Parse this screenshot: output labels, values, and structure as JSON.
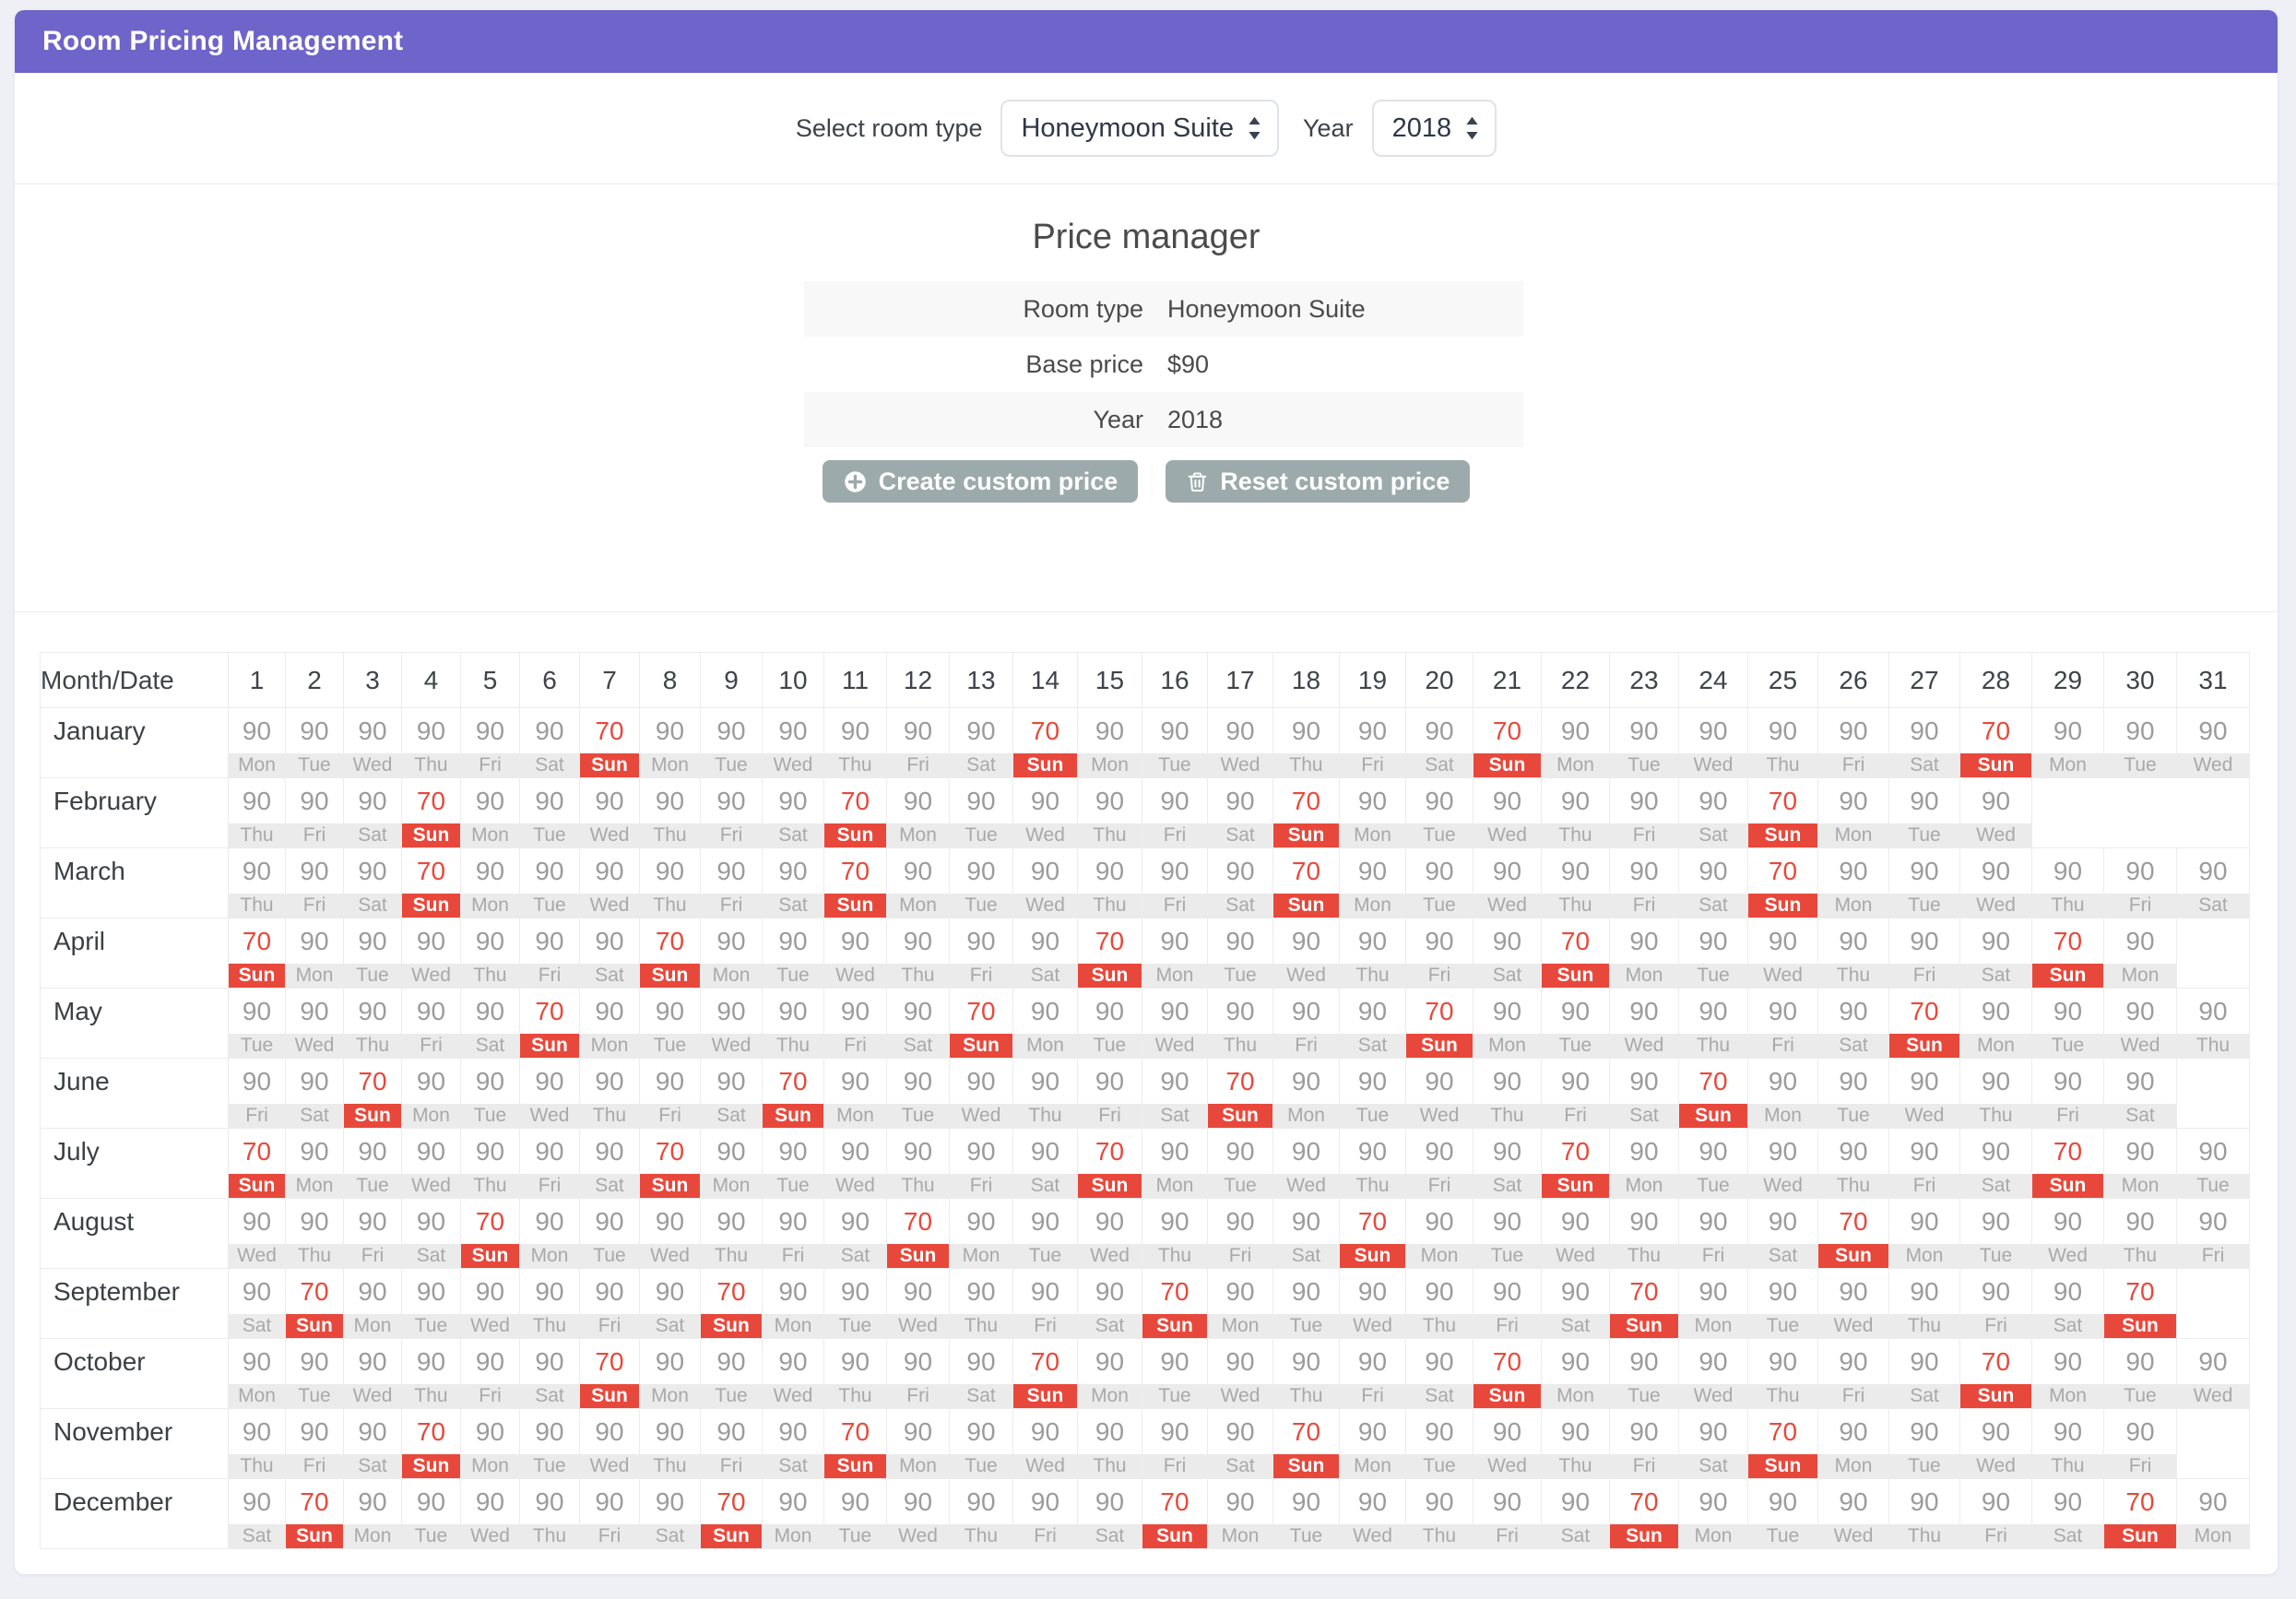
{
  "header": {
    "title": "Room Pricing Management"
  },
  "controls": {
    "room_type_label": "Select room type",
    "room_type_value": "Honeymoon Suite",
    "year_label": "Year",
    "year_value": "2018"
  },
  "price_manager": {
    "title": "Price manager",
    "rows": [
      {
        "label": "Room type",
        "value": "Honeymoon Suite"
      },
      {
        "label": "Base price",
        "value": "$90"
      },
      {
        "label": "Year",
        "value": "2018"
      }
    ],
    "create_button_label": "Create custom price",
    "reset_button_label": "Reset custom price"
  },
  "pricing_table": {
    "corner_label": "Month/Date",
    "day_numbers": [
      1,
      2,
      3,
      4,
      5,
      6,
      7,
      8,
      9,
      10,
      11,
      12,
      13,
      14,
      15,
      16,
      17,
      18,
      19,
      20,
      21,
      22,
      23,
      24,
      25,
      26,
      27,
      28,
      29,
      30,
      31
    ],
    "base_price": 90,
    "sunday_price": 70,
    "months": [
      {
        "name": "January",
        "weekdays": [
          "Mon",
          "Tue",
          "Wed",
          "Thu",
          "Fri",
          "Sat",
          "Sun",
          "Mon",
          "Tue",
          "Wed",
          "Thu",
          "Fri",
          "Sat",
          "Sun",
          "Mon",
          "Tue",
          "Wed",
          "Thu",
          "Fri",
          "Sat",
          "Sun",
          "Mon",
          "Tue",
          "Wed",
          "Thu",
          "Fri",
          "Sat",
          "Sun",
          "Mon",
          "Tue",
          "Wed"
        ],
        "prices": [
          90,
          90,
          90,
          90,
          90,
          90,
          70,
          90,
          90,
          90,
          90,
          90,
          90,
          70,
          90,
          90,
          90,
          90,
          90,
          90,
          70,
          90,
          90,
          90,
          90,
          90,
          90,
          70,
          90,
          90,
          90
        ]
      },
      {
        "name": "February",
        "weekdays": [
          "Thu",
          "Fri",
          "Sat",
          "Sun",
          "Mon",
          "Tue",
          "Wed",
          "Thu",
          "Fri",
          "Sat",
          "Sun",
          "Mon",
          "Tue",
          "Wed",
          "Thu",
          "Fri",
          "Sat",
          "Sun",
          "Mon",
          "Tue",
          "Wed",
          "Thu",
          "Fri",
          "Sat",
          "Sun",
          "Mon",
          "Tue",
          "Wed"
        ],
        "prices": [
          90,
          90,
          90,
          70,
          90,
          90,
          90,
          90,
          90,
          90,
          70,
          90,
          90,
          90,
          90,
          90,
          90,
          70,
          90,
          90,
          90,
          90,
          90,
          90,
          70,
          90,
          90,
          90
        ]
      },
      {
        "name": "March",
        "weekdays": [
          "Thu",
          "Fri",
          "Sat",
          "Sun",
          "Mon",
          "Tue",
          "Wed",
          "Thu",
          "Fri",
          "Sat",
          "Sun",
          "Mon",
          "Tue",
          "Wed",
          "Thu",
          "Fri",
          "Sat",
          "Sun",
          "Mon",
          "Tue",
          "Wed",
          "Thu",
          "Fri",
          "Sat",
          "Sun",
          "Mon",
          "Tue",
          "Wed",
          "Thu",
          "Fri",
          "Sat"
        ],
        "prices": [
          90,
          90,
          90,
          70,
          90,
          90,
          90,
          90,
          90,
          90,
          70,
          90,
          90,
          90,
          90,
          90,
          90,
          70,
          90,
          90,
          90,
          90,
          90,
          90,
          70,
          90,
          90,
          90,
          90,
          90,
          90
        ]
      },
      {
        "name": "April",
        "weekdays": [
          "Sun",
          "Mon",
          "Tue",
          "Wed",
          "Thu",
          "Fri",
          "Sat",
          "Sun",
          "Mon",
          "Tue",
          "Wed",
          "Thu",
          "Fri",
          "Sat",
          "Sun",
          "Mon",
          "Tue",
          "Wed",
          "Thu",
          "Fri",
          "Sat",
          "Sun",
          "Mon",
          "Tue",
          "Wed",
          "Thu",
          "Fri",
          "Sat",
          "Sun",
          "Mon"
        ],
        "prices": [
          70,
          90,
          90,
          90,
          90,
          90,
          90,
          70,
          90,
          90,
          90,
          90,
          90,
          90,
          70,
          90,
          90,
          90,
          90,
          90,
          90,
          70,
          90,
          90,
          90,
          90,
          90,
          90,
          70,
          90
        ]
      },
      {
        "name": "May",
        "weekdays": [
          "Tue",
          "Wed",
          "Thu",
          "Fri",
          "Sat",
          "Sun",
          "Mon",
          "Tue",
          "Wed",
          "Thu",
          "Fri",
          "Sat",
          "Sun",
          "Mon",
          "Tue",
          "Wed",
          "Thu",
          "Fri",
          "Sat",
          "Sun",
          "Mon",
          "Tue",
          "Wed",
          "Thu",
          "Fri",
          "Sat",
          "Sun",
          "Mon",
          "Tue",
          "Wed",
          "Thu"
        ],
        "prices": [
          90,
          90,
          90,
          90,
          90,
          70,
          90,
          90,
          90,
          90,
          90,
          90,
          70,
          90,
          90,
          90,
          90,
          90,
          90,
          70,
          90,
          90,
          90,
          90,
          90,
          90,
          70,
          90,
          90,
          90,
          90
        ]
      },
      {
        "name": "June",
        "weekdays": [
          "Fri",
          "Sat",
          "Sun",
          "Mon",
          "Tue",
          "Wed",
          "Thu",
          "Fri",
          "Sat",
          "Sun",
          "Mon",
          "Tue",
          "Wed",
          "Thu",
          "Fri",
          "Sat",
          "Sun",
          "Mon",
          "Tue",
          "Wed",
          "Thu",
          "Fri",
          "Sat",
          "Sun",
          "Mon",
          "Tue",
          "Wed",
          "Thu",
          "Fri",
          "Sat"
        ],
        "prices": [
          90,
          90,
          70,
          90,
          90,
          90,
          90,
          90,
          90,
          70,
          90,
          90,
          90,
          90,
          90,
          90,
          70,
          90,
          90,
          90,
          90,
          90,
          90,
          70,
          90,
          90,
          90,
          90,
          90,
          90
        ]
      },
      {
        "name": "July",
        "weekdays": [
          "Sun",
          "Mon",
          "Tue",
          "Wed",
          "Thu",
          "Fri",
          "Sat",
          "Sun",
          "Mon",
          "Tue",
          "Wed",
          "Thu",
          "Fri",
          "Sat",
          "Sun",
          "Mon",
          "Tue",
          "Wed",
          "Thu",
          "Fri",
          "Sat",
          "Sun",
          "Mon",
          "Tue",
          "Wed",
          "Thu",
          "Fri",
          "Sat",
          "Sun",
          "Mon",
          "Tue"
        ],
        "prices": [
          70,
          90,
          90,
          90,
          90,
          90,
          90,
          70,
          90,
          90,
          90,
          90,
          90,
          90,
          70,
          90,
          90,
          90,
          90,
          90,
          90,
          70,
          90,
          90,
          90,
          90,
          90,
          90,
          70,
          90,
          90
        ]
      },
      {
        "name": "August",
        "weekdays": [
          "Wed",
          "Thu",
          "Fri",
          "Sat",
          "Sun",
          "Mon",
          "Tue",
          "Wed",
          "Thu",
          "Fri",
          "Sat",
          "Sun",
          "Mon",
          "Tue",
          "Wed",
          "Thu",
          "Fri",
          "Sat",
          "Sun",
          "Mon",
          "Tue",
          "Wed",
          "Thu",
          "Fri",
          "Sat",
          "Sun",
          "Mon",
          "Tue",
          "Wed",
          "Thu",
          "Fri"
        ],
        "prices": [
          90,
          90,
          90,
          90,
          70,
          90,
          90,
          90,
          90,
          90,
          90,
          70,
          90,
          90,
          90,
          90,
          90,
          90,
          70,
          90,
          90,
          90,
          90,
          90,
          90,
          70,
          90,
          90,
          90,
          90,
          90
        ]
      },
      {
        "name": "September",
        "weekdays": [
          "Sat",
          "Sun",
          "Mon",
          "Tue",
          "Wed",
          "Thu",
          "Fri",
          "Sat",
          "Sun",
          "Mon",
          "Tue",
          "Wed",
          "Thu",
          "Fri",
          "Sat",
          "Sun",
          "Mon",
          "Tue",
          "Wed",
          "Thu",
          "Fri",
          "Sat",
          "Sun",
          "Mon",
          "Tue",
          "Wed",
          "Thu",
          "Fri",
          "Sat",
          "Sun"
        ],
        "prices": [
          90,
          70,
          90,
          90,
          90,
          90,
          90,
          90,
          70,
          90,
          90,
          90,
          90,
          90,
          90,
          70,
          90,
          90,
          90,
          90,
          90,
          90,
          70,
          90,
          90,
          90,
          90,
          90,
          90,
          70
        ]
      },
      {
        "name": "October",
        "weekdays": [
          "Mon",
          "Tue",
          "Wed",
          "Thu",
          "Fri",
          "Sat",
          "Sun",
          "Mon",
          "Tue",
          "Wed",
          "Thu",
          "Fri",
          "Sat",
          "Sun",
          "Mon",
          "Tue",
          "Wed",
          "Thu",
          "Fri",
          "Sat",
          "Sun",
          "Mon",
          "Tue",
          "Wed",
          "Thu",
          "Fri",
          "Sat",
          "Sun",
          "Mon",
          "Tue",
          "Wed"
        ],
        "prices": [
          90,
          90,
          90,
          90,
          90,
          90,
          70,
          90,
          90,
          90,
          90,
          90,
          90,
          70,
          90,
          90,
          90,
          90,
          90,
          90,
          70,
          90,
          90,
          90,
          90,
          90,
          90,
          70,
          90,
          90,
          90
        ]
      },
      {
        "name": "November",
        "weekdays": [
          "Thu",
          "Fri",
          "Sat",
          "Sun",
          "Mon",
          "Tue",
          "Wed",
          "Thu",
          "Fri",
          "Sat",
          "Sun",
          "Mon",
          "Tue",
          "Wed",
          "Thu",
          "Fri",
          "Sat",
          "Sun",
          "Mon",
          "Tue",
          "Wed",
          "Thu",
          "Fri",
          "Sat",
          "Sun",
          "Mon",
          "Tue",
          "Wed",
          "Thu",
          "Fri"
        ],
        "prices": [
          90,
          90,
          90,
          70,
          90,
          90,
          90,
          90,
          90,
          90,
          70,
          90,
          90,
          90,
          90,
          90,
          90,
          70,
          90,
          90,
          90,
          90,
          90,
          90,
          70,
          90,
          90,
          90,
          90,
          90
        ]
      },
      {
        "name": "December",
        "weekdays": [
          "Sat",
          "Sun",
          "Mon",
          "Tue",
          "Wed",
          "Thu",
          "Fri",
          "Sat",
          "Sun",
          "Mon",
          "Tue",
          "Wed",
          "Thu",
          "Fri",
          "Sat",
          "Sun",
          "Mon",
          "Tue",
          "Wed",
          "Thu",
          "Fri",
          "Sat",
          "Sun",
          "Mon",
          "Tue",
          "Wed",
          "Thu",
          "Fri",
          "Sat",
          "Sun",
          "Mon"
        ],
        "prices": [
          90,
          70,
          90,
          90,
          90,
          90,
          90,
          90,
          70,
          90,
          90,
          90,
          90,
          90,
          90,
          70,
          90,
          90,
          90,
          90,
          90,
          90,
          70,
          90,
          90,
          90,
          90,
          90,
          90,
          70,
          90
        ]
      }
    ]
  },
  "colors": {
    "page_bg": "#eef0f6",
    "header_bg": "#6e64c9",
    "accent_red": "#e8483b",
    "button_bg": "#9caaab",
    "band_bg": "#ebebeb",
    "stripe_bg": "#f8f8f8",
    "table_border": "#ececec",
    "price_gray": "#9b9b9b"
  }
}
